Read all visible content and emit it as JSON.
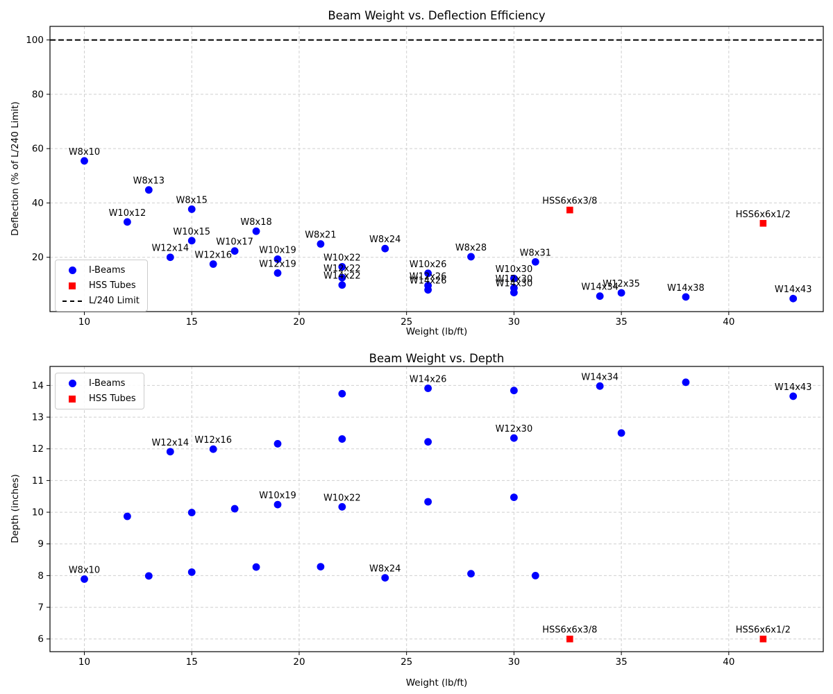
{
  "figure_bg": "#ffffff",
  "colors": {
    "ibeam": "#0000ff",
    "hss": "#ff0000",
    "limit": "#000000",
    "grid": "#cfcfcf",
    "axis": "#000000"
  },
  "chart_data": [
    {
      "type": "scatter",
      "title": "Beam Weight vs. Deflection Efficiency",
      "xlabel": "Weight (lb/ft)",
      "ylabel": "Deflection (% of L/240 Limit)",
      "xlim": [
        8.4,
        44.4
      ],
      "ylim": [
        0,
        105
      ],
      "xticks": [
        10,
        15,
        20,
        25,
        30,
        35,
        40
      ],
      "yticks": [
        20,
        40,
        60,
        80,
        100
      ],
      "grid": true,
      "legend_position": "lower-left",
      "legend": [
        {
          "label": "I-Beams",
          "marker": "circle",
          "color": "#0000ff"
        },
        {
          "label": "HSS Tubes",
          "marker": "square",
          "color": "#ff0000"
        },
        {
          "label": "L/240 Limit",
          "marker": "dashed-line",
          "color": "#000000"
        }
      ],
      "limit_line": {
        "y": 100,
        "color": "#000000",
        "style": "dashed"
      },
      "series": [
        {
          "name": "I-Beams",
          "marker": "circle",
          "color": "#0000ff",
          "points": [
            {
              "label": "W8x10",
              "x": 10,
              "y": 55.5,
              "labeled": true
            },
            {
              "label": "W10x12",
              "x": 12,
              "y": 33.0,
              "labeled": true
            },
            {
              "label": "W8x13",
              "x": 13,
              "y": 44.8,
              "labeled": true
            },
            {
              "label": "W12x14",
              "x": 14,
              "y": 20.0,
              "labeled": true
            },
            {
              "label": "W8x15",
              "x": 15,
              "y": 37.7,
              "labeled": true
            },
            {
              "label": "W10x15",
              "x": 15,
              "y": 26.1,
              "labeled": true
            },
            {
              "label": "W12x16",
              "x": 16,
              "y": 17.5,
              "labeled": true
            },
            {
              "label": "W10x17",
              "x": 17,
              "y": 22.3,
              "labeled": true
            },
            {
              "label": "W8x18",
              "x": 18,
              "y": 29.6,
              "labeled": true
            },
            {
              "label": "W10x19",
              "x": 19,
              "y": 19.3,
              "labeled": true
            },
            {
              "label": "W12x19",
              "x": 19,
              "y": 14.2,
              "labeled": true
            },
            {
              "label": "W8x21",
              "x": 21,
              "y": 24.9,
              "labeled": true
            },
            {
              "label": "W10x22",
              "x": 22,
              "y": 16.5,
              "labeled": true
            },
            {
              "label": "W12x22",
              "x": 22,
              "y": 12.5,
              "labeled": true
            },
            {
              "label": "W14x22",
              "x": 22,
              "y": 9.8,
              "labeled": true
            },
            {
              "label": "W8x24",
              "x": 24,
              "y": 23.2,
              "labeled": true
            },
            {
              "label": "W10x26",
              "x": 26,
              "y": 14.1,
              "labeled": true
            },
            {
              "label": "W12x26",
              "x": 26,
              "y": 9.6,
              "labeled": true
            },
            {
              "label": "W14x26",
              "x": 26,
              "y": 8.0,
              "labeled": true
            },
            {
              "label": "W8x28",
              "x": 28,
              "y": 20.2,
              "labeled": true
            },
            {
              "label": "W10x30",
              "x": 30,
              "y": 12.2,
              "labeled": true
            },
            {
              "label": "W12x30",
              "x": 30,
              "y": 8.7,
              "labeled": true
            },
            {
              "label": "W14x30",
              "x": 30,
              "y": 7.0,
              "labeled": true
            },
            {
              "label": "W8x31",
              "x": 31,
              "y": 18.3,
              "labeled": true
            },
            {
              "label": "W14x34",
              "x": 34,
              "y": 5.7,
              "labeled": true
            },
            {
              "label": "W12x35",
              "x": 35,
              "y": 6.9,
              "labeled": true
            },
            {
              "label": "W14x38",
              "x": 38,
              "y": 5.4,
              "labeled": true
            },
            {
              "label": "W14x43",
              "x": 43,
              "y": 4.8,
              "labeled": true
            }
          ]
        },
        {
          "name": "HSS Tubes",
          "marker": "square",
          "color": "#ff0000",
          "points": [
            {
              "label": "HSS6x6x3/8",
              "x": 32.6,
              "y": 37.4,
              "labeled": true
            },
            {
              "label": "HSS6x6x1/2",
              "x": 41.6,
              "y": 32.5,
              "labeled": true
            }
          ]
        }
      ]
    },
    {
      "type": "scatter",
      "title": "Beam Weight vs. Depth",
      "xlabel": "Weight (lb/ft)",
      "ylabel": "Depth (inches)",
      "xlim": [
        8.4,
        44.4
      ],
      "ylim": [
        5.6,
        14.6
      ],
      "xticks": [
        10,
        15,
        20,
        25,
        30,
        35,
        40
      ],
      "yticks": [
        6,
        7,
        8,
        9,
        10,
        11,
        12,
        13,
        14
      ],
      "grid": true,
      "legend_position": "upper-left",
      "legend": [
        {
          "label": "I-Beams",
          "marker": "circle",
          "color": "#0000ff"
        },
        {
          "label": "HSS Tubes",
          "marker": "square",
          "color": "#ff0000"
        }
      ],
      "limit_line": null,
      "series": [
        {
          "name": "I-Beams",
          "marker": "circle",
          "color": "#0000ff",
          "points": [
            {
              "label": "W8x10",
              "x": 10,
              "y": 7.89,
              "labeled": true
            },
            {
              "label": "W10x12",
              "x": 12,
              "y": 9.87,
              "labeled": false
            },
            {
              "label": "W8x13",
              "x": 13,
              "y": 7.99,
              "labeled": false
            },
            {
              "label": "W12x14",
              "x": 14,
              "y": 11.91,
              "labeled": true
            },
            {
              "label": "W8x15",
              "x": 15,
              "y": 8.11,
              "labeled": false
            },
            {
              "label": "W10x15",
              "x": 15,
              "y": 9.99,
              "labeled": false
            },
            {
              "label": "W12x16",
              "x": 16,
              "y": 11.99,
              "labeled": true
            },
            {
              "label": "W10x17",
              "x": 17,
              "y": 10.11,
              "labeled": false
            },
            {
              "label": "W8x18",
              "x": 18,
              "y": 8.27,
              "labeled": false
            },
            {
              "label": "W10x19",
              "x": 19,
              "y": 10.24,
              "labeled": true
            },
            {
              "label": "W12x19",
              "x": 19,
              "y": 12.16,
              "labeled": false
            },
            {
              "label": "W8x21",
              "x": 21,
              "y": 8.28,
              "labeled": false
            },
            {
              "label": "W10x22",
              "x": 22,
              "y": 10.17,
              "labeled": true
            },
            {
              "label": "W12x22",
              "x": 22,
              "y": 12.31,
              "labeled": false
            },
            {
              "label": "W14x22",
              "x": 22,
              "y": 13.74,
              "labeled": false
            },
            {
              "label": "W8x24",
              "x": 24,
              "y": 7.93,
              "labeled": true
            },
            {
              "label": "W10x26",
              "x": 26,
              "y": 10.33,
              "labeled": false
            },
            {
              "label": "W12x26",
              "x": 26,
              "y": 12.22,
              "labeled": false
            },
            {
              "label": "W14x26",
              "x": 26,
              "y": 13.91,
              "labeled": true
            },
            {
              "label": "W8x28",
              "x": 28,
              "y": 8.06,
              "labeled": false
            },
            {
              "label": "W10x30",
              "x": 30,
              "y": 10.47,
              "labeled": false
            },
            {
              "label": "W12x30",
              "x": 30,
              "y": 12.34,
              "labeled": true
            },
            {
              "label": "W14x30",
              "x": 30,
              "y": 13.84,
              "labeled": false
            },
            {
              "label": "W8x31",
              "x": 31,
              "y": 8.0,
              "labeled": false
            },
            {
              "label": "W14x34",
              "x": 34,
              "y": 13.98,
              "labeled": true
            },
            {
              "label": "W12x35",
              "x": 35,
              "y": 12.5,
              "labeled": false
            },
            {
              "label": "W14x38",
              "x": 38,
              "y": 14.1,
              "labeled": false
            },
            {
              "label": "W14x43",
              "x": 43,
              "y": 13.66,
              "labeled": true
            }
          ]
        },
        {
          "name": "HSS Tubes",
          "marker": "square",
          "color": "#ff0000",
          "points": [
            {
              "label": "HSS6x6x3/8",
              "x": 32.6,
              "y": 6.0,
              "labeled": true
            },
            {
              "label": "HSS6x6x1/2",
              "x": 41.6,
              "y": 6.0,
              "labeled": true
            }
          ]
        }
      ]
    }
  ]
}
